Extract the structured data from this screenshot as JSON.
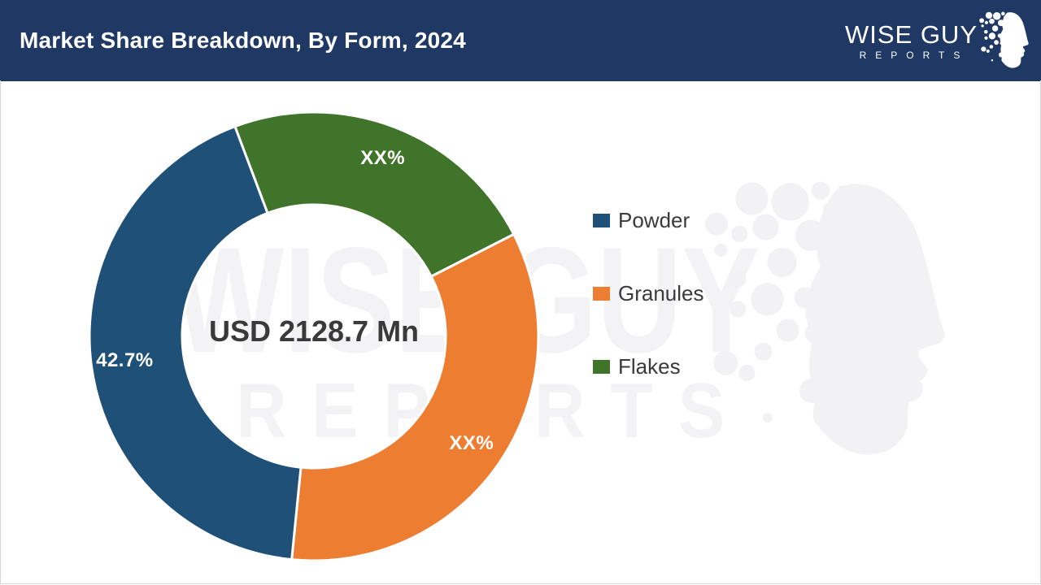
{
  "header": {
    "title": "Market Share Breakdown, By Form, 2024",
    "bg_color": "#1F3864",
    "logo": {
      "line1": "WISE GUY",
      "line2": "REPORTS"
    }
  },
  "watermark": {
    "line1": "WISE GUY",
    "line2": "REPORTS"
  },
  "chart_data": {
    "type": "donut",
    "title": "Market Share Breakdown, By Form, 2024",
    "center_label": "USD 2128.7 Mn",
    "value_unit": "percent_share",
    "series": [
      {
        "name": "Powder",
        "value": 42.7,
        "label": "42.7%",
        "color": "#1F5077"
      },
      {
        "name": "Granules",
        "value": 34.1,
        "label": "XX%",
        "color": "#ED7D31"
      },
      {
        "name": "Flakes",
        "value": 23.2,
        "label": "XX%",
        "color": "#41742B"
      }
    ],
    "layout": {
      "start_angle_deg": -20.6,
      "draw_order": [
        "Flakes",
        "Granules",
        "Powder"
      ],
      "inner_radius_ratio": 0.587,
      "label_radius_ratio": 0.85,
      "legend_position": "right",
      "divider_color": "#ffffff"
    }
  }
}
